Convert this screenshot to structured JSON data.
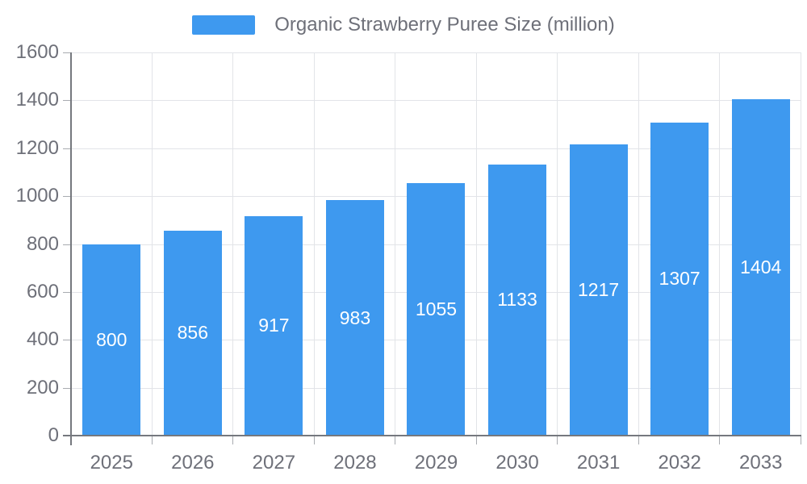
{
  "chart_data": {
    "type": "bar",
    "title": "Organic Strawberry Puree Size (million)",
    "series_name": "Organic Strawberry Puree Size (million)",
    "categories": [
      "2025",
      "2026",
      "2027",
      "2028",
      "2029",
      "2030",
      "2031",
      "2032",
      "2033"
    ],
    "values": [
      800,
      856,
      917,
      983,
      1055,
      1133,
      1217,
      1307,
      1404
    ],
    "xlabel": "",
    "ylabel": "",
    "ylim": [
      0,
      1600
    ],
    "yticks": [
      0,
      200,
      400,
      600,
      800,
      1000,
      1200,
      1400,
      1600
    ],
    "grid": true,
    "legend_position": "top-center",
    "value_label_position": "inside-middle",
    "colors": {
      "bar": "#3e99ef",
      "bar_label": "#ffffff",
      "axis_text": "#6e7079",
      "legend_text": "#6e7079",
      "axis_line": "#75787e",
      "grid_line": "#e2e4e8",
      "tick": "#a8abb0",
      "background": "#ffffff"
    }
  }
}
